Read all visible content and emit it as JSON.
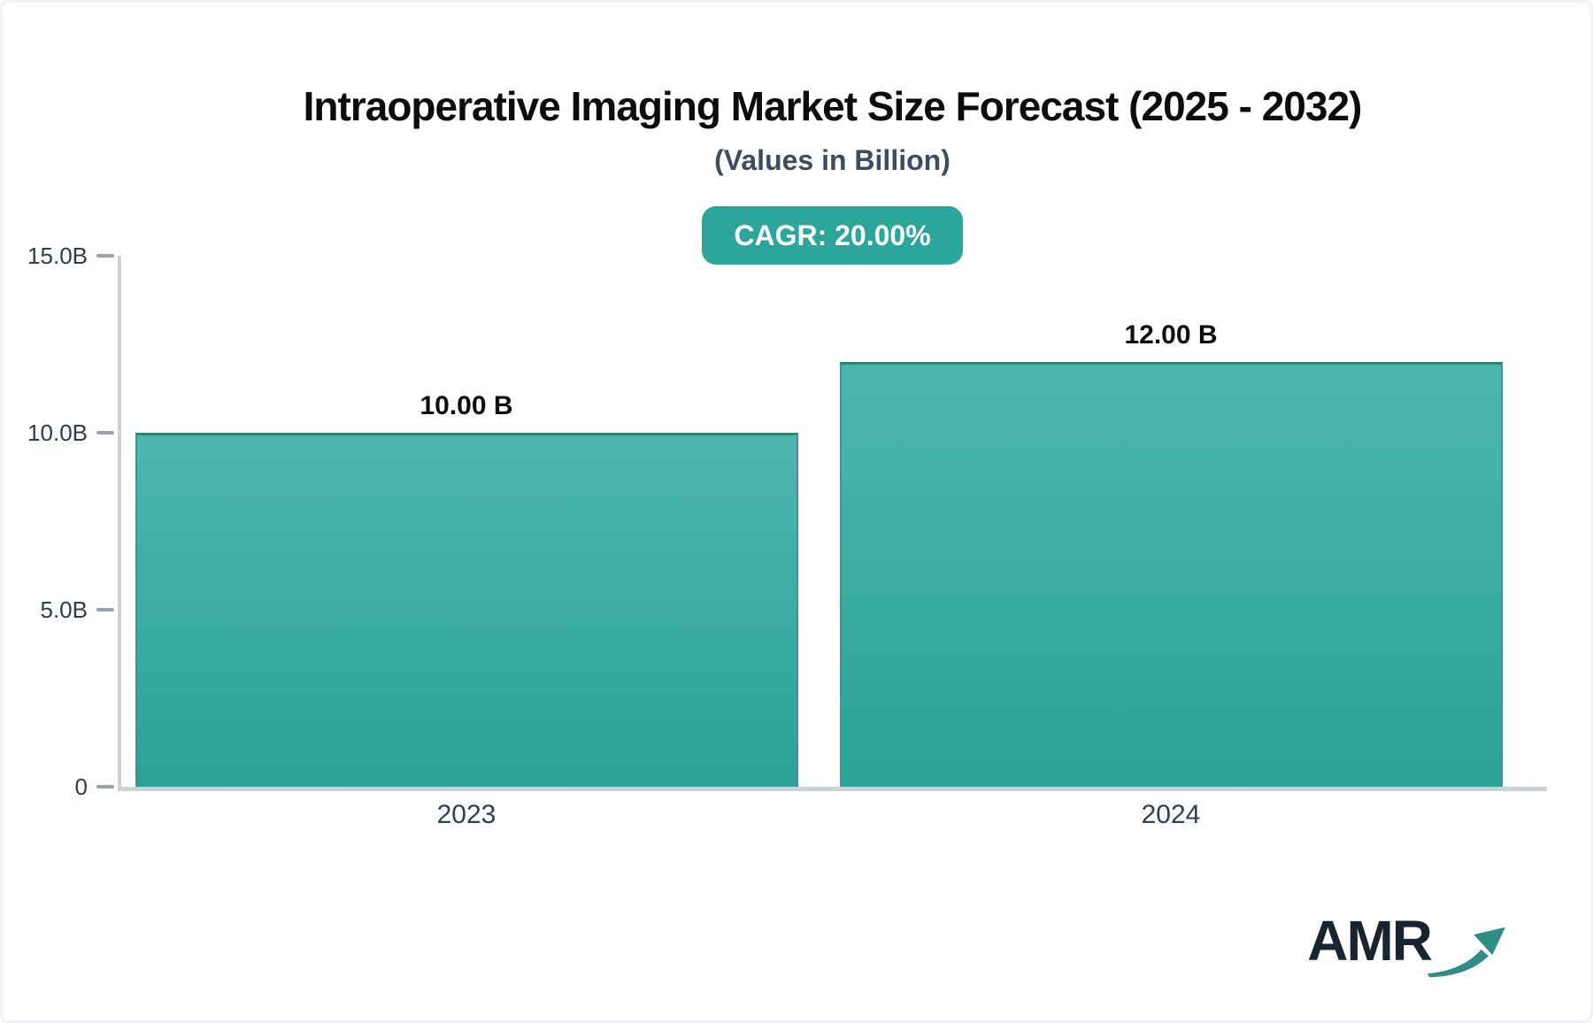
{
  "chart_data": {
    "type": "bar",
    "title": "Intraoperative Imaging Market Size Forecast (2025 - 2032)",
    "subtitle": "(Values in Billion)",
    "annotation": "CAGR: 20.00%",
    "categories": [
      "2023",
      "2024"
    ],
    "values": [
      10.0,
      12.0
    ],
    "value_labels": [
      "10.00 B",
      "12.00 B"
    ],
    "unit": "Billion",
    "ylim": [
      0,
      15
    ],
    "yticks": [
      {
        "value": 0,
        "label": "0"
      },
      {
        "value": 5,
        "label": "5.0B"
      },
      {
        "value": 10,
        "label": "10.0B"
      },
      {
        "value": 15,
        "label": "15.0B"
      }
    ],
    "grid": false,
    "legend": false,
    "colors": {
      "bar_gradient_top": "#4db7ab",
      "bar_gradient_bottom": "#29a396",
      "bar_border_top": "#1a8d80",
      "bar_border_side": "#2f9e91",
      "axis": "#ccd0d9",
      "tick_dash": "#9aa1a9",
      "badge_bg": "#2aa79a",
      "badge_text": "#ffffff"
    }
  },
  "logo": {
    "text": "AMR",
    "arrow_color": "#2f8d85"
  }
}
